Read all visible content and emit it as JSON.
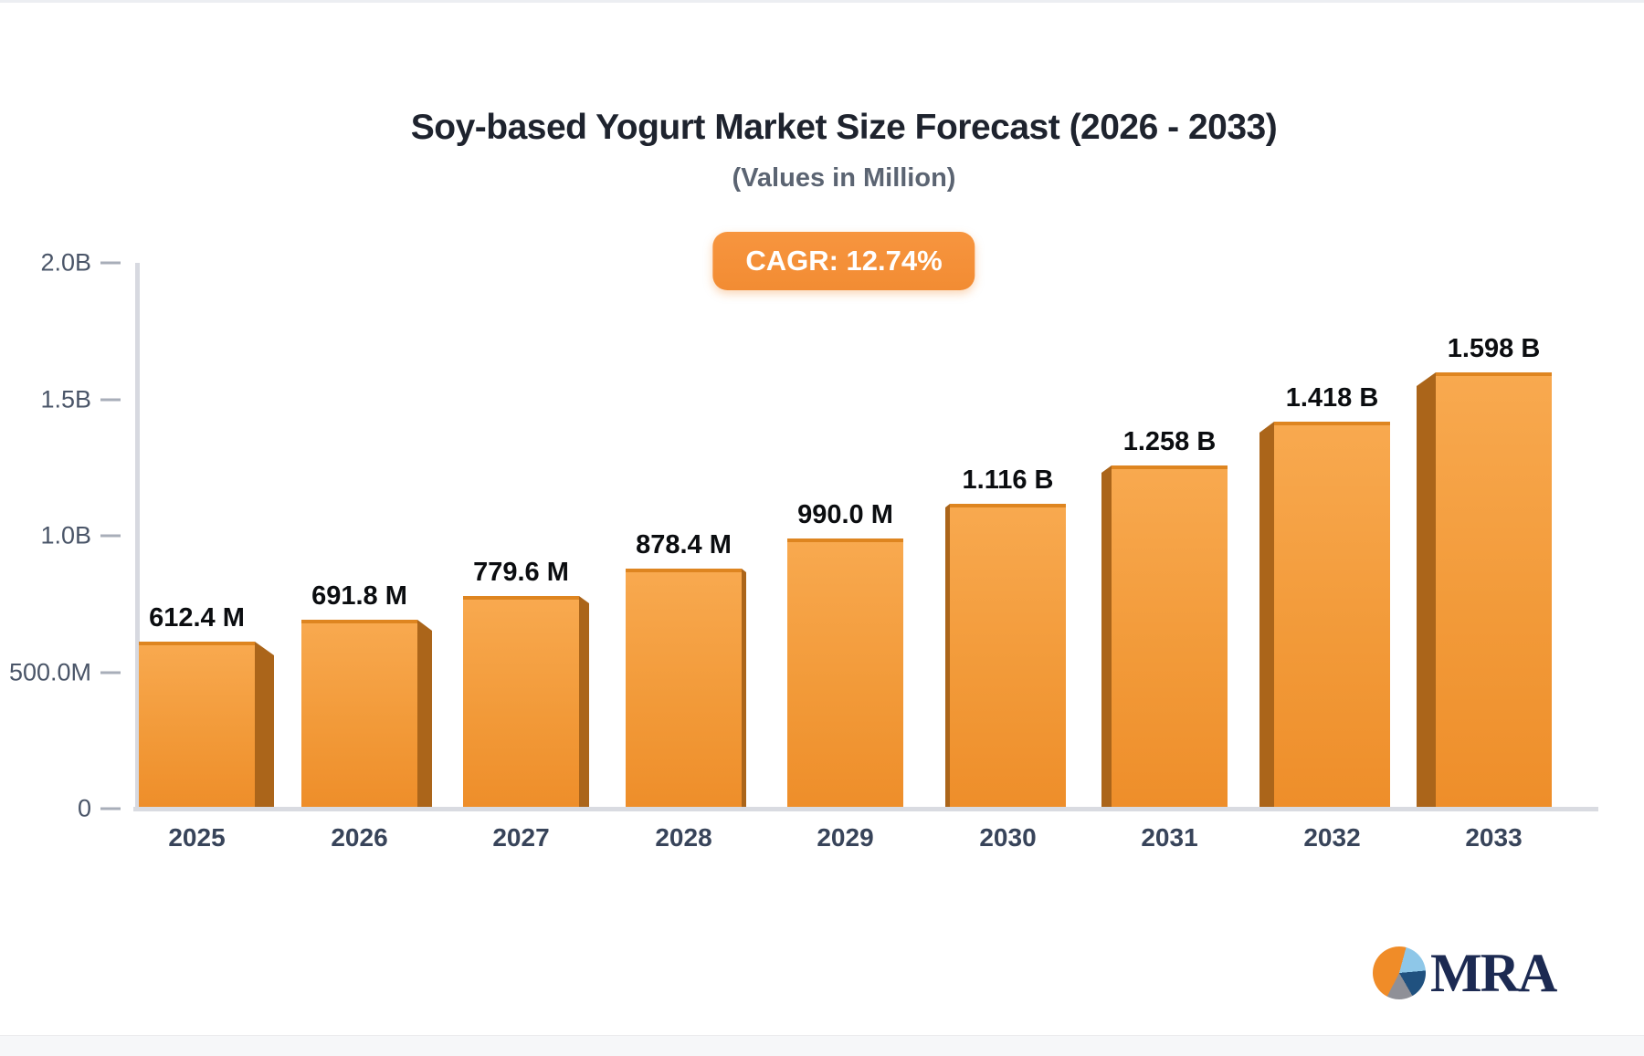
{
  "header": {
    "title": "Soy-based Yogurt Market Size Forecast (2026 - 2033)",
    "subtitle": "(Values in Million)",
    "cagr_badge": "CAGR: 12.74%"
  },
  "colors": {
    "bar_face_top": "#f8a94f",
    "bar_face_bottom": "#ee8e2a",
    "bar_side": "#ab651a",
    "badge_orange": "#f28c33",
    "axis_gray": "#d7d9e0",
    "title_dark": "#1e232e",
    "subtitle_gray": "#5b6472"
  },
  "chart_data": {
    "type": "bar",
    "title": "Soy-based Yogurt Market Size Forecast (2026 - 2033)",
    "subtitle": "(Values in Million)",
    "categories": [
      "2025",
      "2026",
      "2027",
      "2028",
      "2029",
      "2030",
      "2031",
      "2032",
      "2033"
    ],
    "values": [
      612.4,
      691.8,
      779.6,
      878.4,
      990.0,
      1116,
      1258,
      1418,
      1598
    ],
    "value_labels": [
      "612.4 M",
      "691.8 M",
      "779.6 M",
      "878.4 M",
      "990.0 M",
      "1.116 B",
      "1.258 B",
      "1.418 B",
      "1.598 B"
    ],
    "value_unit": "Million",
    "xlabel": "",
    "ylabel": "",
    "ylim": [
      0,
      2000
    ],
    "yticks": [
      {
        "value": 0,
        "label": "0"
      },
      {
        "value": 500,
        "label": "500.0M"
      },
      {
        "value": 1000,
        "label": "1.0B"
      },
      {
        "value": 1500,
        "label": "1.5B"
      },
      {
        "value": 2000,
        "label": "2.0B"
      }
    ],
    "grid": false,
    "legend": false,
    "style": "3d-perspective-from-center"
  },
  "branding": {
    "logo_text": "MRA",
    "logo_icon": "pie-chart"
  }
}
